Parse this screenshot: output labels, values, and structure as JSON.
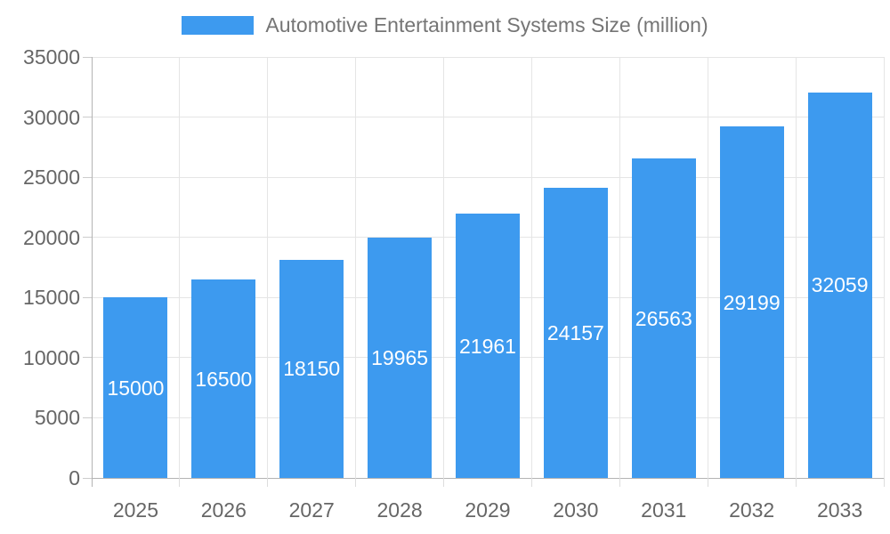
{
  "chart_data": {
    "type": "bar",
    "title": "Automotive Entertainment Systems Size (million)",
    "legend": [
      "Automotive Entertainment Systems Size (million)"
    ],
    "legend_position": "top",
    "categories": [
      "2025",
      "2026",
      "2027",
      "2028",
      "2029",
      "2030",
      "2031",
      "2032",
      "2033"
    ],
    "values": [
      15000,
      16500,
      18150,
      19965,
      21961,
      24157,
      26563,
      29199,
      32059
    ],
    "xlabel": "",
    "ylabel": "",
    "ylim": [
      0,
      35000
    ],
    "yticks": [
      0,
      5000,
      10000,
      15000,
      20000,
      25000,
      30000,
      35000
    ],
    "grid": true,
    "colors": {
      "bar": "#3D9AEF",
      "bar_value_label": "#ffffff",
      "axis_label": "#666666",
      "legend_text": "#757575",
      "gridline": "#e5e5e5",
      "axis_line": "#b3b3b3"
    }
  }
}
